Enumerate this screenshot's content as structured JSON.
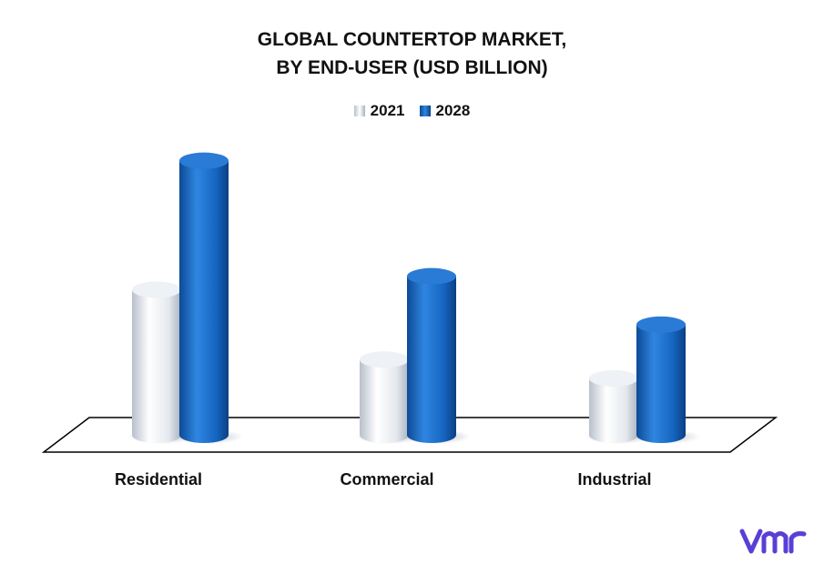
{
  "colors": {
    "series_2021": "#dde2ea",
    "series_2028": "#1565c0",
    "logo": "#5a3fd6"
  },
  "legend_icon": "3d-bar-swatch-icon",
  "logo_icon": "vmr-logo-icon",
  "chart_data": {
    "type": "bar",
    "title_lines": [
      "GLOBAL COUNTERTOP MARKET,",
      "BY END-USER (USD BILLION)"
    ],
    "categories": [
      "Residential",
      "Commercial",
      "Industrial"
    ],
    "series": [
      {
        "name": "2021",
        "values": [
          5.4,
          2.8,
          2.1
        ]
      },
      {
        "name": "2028",
        "values": [
          10.2,
          5.9,
          4.1
        ]
      }
    ],
    "ylim": [
      0,
      11
    ],
    "grid": false,
    "legend_position": "top-center",
    "xlabel": "",
    "ylabel": ""
  }
}
